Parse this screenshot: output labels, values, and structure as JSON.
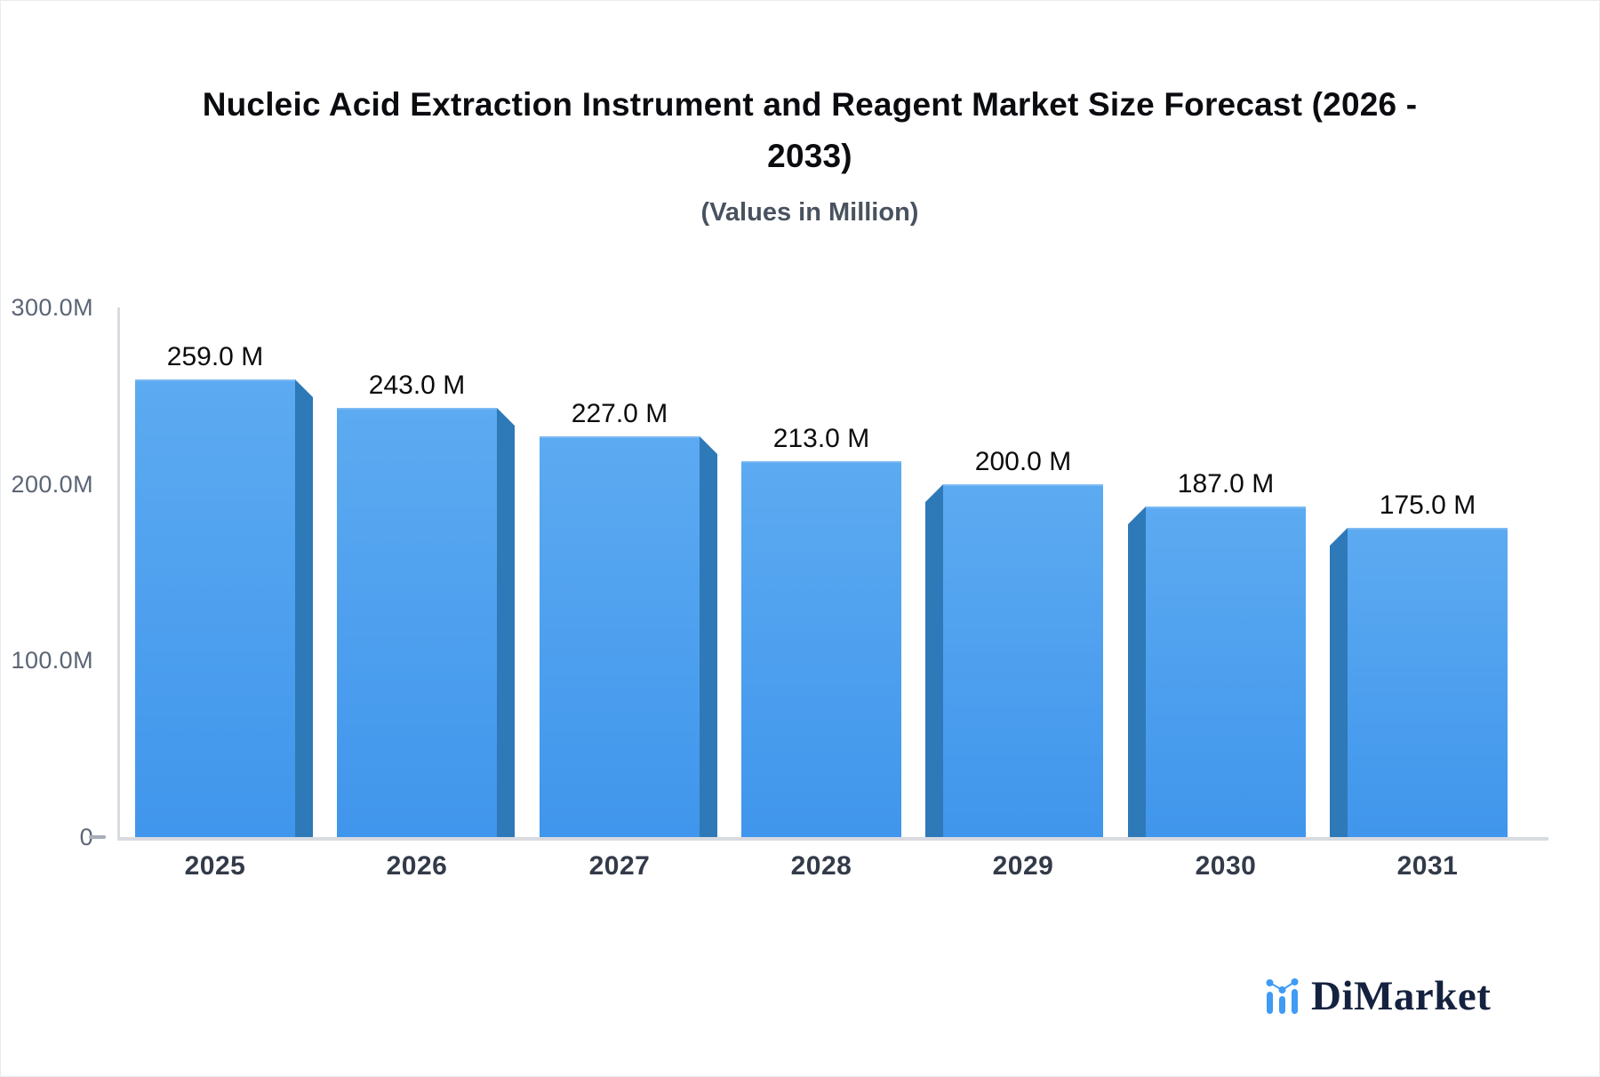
{
  "header": {
    "title_line1": "Nucleic Acid Extraction Instrument and Reagent Market Size Forecast (2026 -",
    "title_line2": "2033)",
    "subtitle": "(Values in Million)"
  },
  "brand": {
    "name": "DiMarket",
    "icon": "bar-chart-logo-icon",
    "icon_color": "#3f9bf4",
    "text_color": "#15223f"
  },
  "chart_data": {
    "type": "bar",
    "title": "Nucleic Acid Extraction Instrument and Reagent Market Size Forecast (2026 - 2033)",
    "subtitle": "(Values in Million)",
    "categories": [
      "2025",
      "2026",
      "2027",
      "2028",
      "2029",
      "2030",
      "2031"
    ],
    "values": [
      259.0,
      243.0,
      227.0,
      213.0,
      200.0,
      187.0,
      175.0
    ],
    "value_labels": [
      "259.0 M",
      "243.0 M",
      "227.0 M",
      "213.0 M",
      "200.0 M",
      "187.0 M",
      "175.0 M"
    ],
    "unit": "Million",
    "xlabel": "",
    "ylabel": "",
    "ylim": [
      0,
      300
    ],
    "y_ticks": [
      {
        "label": "300.0M",
        "value": 300
      },
      {
        "label": "200.0M",
        "value": 200
      },
      {
        "label": "100.0M",
        "value": 100
      },
      {
        "label": "0",
        "value": 0
      }
    ],
    "grid": false,
    "legend_position": "none",
    "bar_style": "3d-extruded-perspective",
    "colors": {
      "bar_face_top": "#5caaf1",
      "bar_face_bottom": "#4096ec",
      "bar_side": "#2e79b8",
      "axis_line": "#d8dbe0",
      "tick_label": "#5c6575",
      "category_label": "#333b49",
      "value_label": "#0b0c0e"
    }
  }
}
